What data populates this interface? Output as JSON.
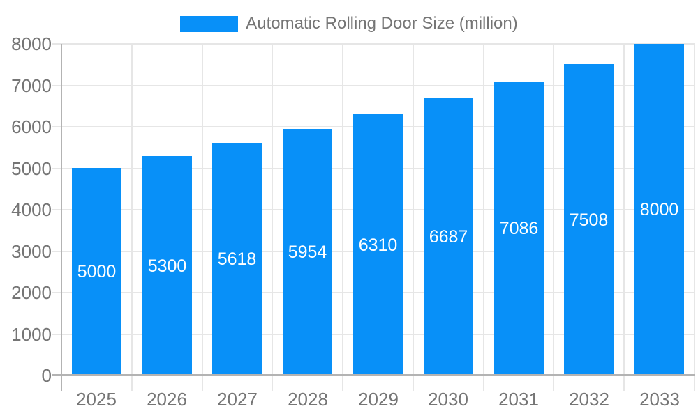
{
  "chart_data": {
    "type": "bar",
    "title": "Automatic Rolling Door Size (million)",
    "legend": [
      "Automatic Rolling Door Size (million)"
    ],
    "legend_position": "top-center",
    "categories": [
      "2025",
      "2026",
      "2027",
      "2028",
      "2029",
      "2030",
      "2031",
      "2032",
      "2033"
    ],
    "series": [
      {
        "name": "Automatic Rolling Door Size (million)",
        "values": [
          5000,
          5300,
          5618,
          5954,
          6310,
          6687,
          7086,
          7508,
          8000
        ]
      }
    ],
    "bar_labels": "inside-vertical-center",
    "xlabel": "",
    "ylabel": "",
    "ylim": [
      0,
      8000
    ],
    "yticks": [
      0,
      1000,
      2000,
      3000,
      4000,
      5000,
      6000,
      7000,
      8000
    ],
    "grid": true,
    "colors": {
      "bar": "#0890F8",
      "bar_label_text": "#FFFFFF",
      "grid_line": "#E6E6E6",
      "axis_line": "#B3B3B3",
      "axis_text": "#757575",
      "legend_text": "#757575",
      "background": "#FFFFFF"
    }
  }
}
